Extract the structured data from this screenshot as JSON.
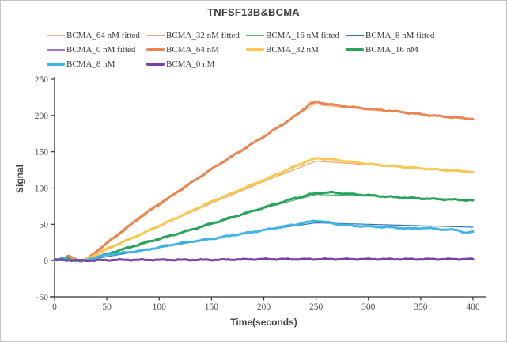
{
  "title": "TNFSF13B&BCMA",
  "chart_data": {
    "type": "line",
    "title": "TNFSF13B&BCMA",
    "xlabel": "Time(seconds)",
    "ylabel": "Signal",
    "xlim": [
      0,
      400
    ],
    "ylim": [
      -50,
      250
    ],
    "x_ticks": [
      0,
      50,
      100,
      150,
      200,
      250,
      300,
      350,
      400
    ],
    "y_ticks": [
      -50,
      0,
      50,
      100,
      150,
      200,
      250
    ],
    "grid": false,
    "legend_position": "top",
    "axis_color": "#333333",
    "series": [
      {
        "name": "BCMA_64 nM fitted",
        "color": "#F4B183",
        "width": 1.2,
        "style": "fitted",
        "noise": 0,
        "points": [
          [
            0,
            0
          ],
          [
            28,
            0
          ],
          [
            85,
            65
          ],
          [
            150,
            127
          ],
          [
            200,
            172
          ],
          [
            248,
            215
          ],
          [
            300,
            208
          ],
          [
            350,
            202
          ],
          [
            400,
            196
          ]
        ]
      },
      {
        "name": "BCMA_32 nM fitted",
        "color": "#F0A36E",
        "width": 1.2,
        "style": "fitted",
        "noise": 0,
        "points": [
          [
            0,
            0
          ],
          [
            28,
            0
          ],
          [
            85,
            38
          ],
          [
            150,
            79
          ],
          [
            200,
            109
          ],
          [
            250,
            137
          ],
          [
            300,
            132
          ],
          [
            350,
            127
          ],
          [
            400,
            123
          ]
        ]
      },
      {
        "name": "BCMA_16 nM fitted",
        "color": "#55B567",
        "width": 1.2,
        "style": "fitted",
        "noise": 0,
        "points": [
          [
            0,
            0
          ],
          [
            28,
            0
          ],
          [
            85,
            23
          ],
          [
            150,
            50
          ],
          [
            200,
            72
          ],
          [
            250,
            91
          ],
          [
            300,
            89
          ],
          [
            350,
            86
          ],
          [
            400,
            84
          ]
        ]
      },
      {
        "name": "BCMA_8 nM fitted",
        "color": "#2E75B6",
        "width": 1.2,
        "style": "fitted",
        "noise": 0,
        "points": [
          [
            0,
            0
          ],
          [
            28,
            0
          ],
          [
            85,
            14
          ],
          [
            150,
            30
          ],
          [
            200,
            42
          ],
          [
            250,
            52
          ],
          [
            300,
            50
          ],
          [
            350,
            48
          ],
          [
            400,
            46
          ]
        ]
      },
      {
        "name": "BCMA_0 nM fitted",
        "color": "#A07CC8",
        "width": 1.2,
        "style": "fitted",
        "noise": 0,
        "points": [
          [
            0,
            0
          ],
          [
            100,
            1
          ],
          [
            250,
            1
          ],
          [
            400,
            1
          ]
        ]
      },
      {
        "name": "BCMA_64 nM",
        "color": "#EC8450",
        "width": 3,
        "style": "raw",
        "noise": 1.2,
        "points": [
          [
            0,
            2
          ],
          [
            8,
            3
          ],
          [
            14,
            6
          ],
          [
            20,
            2
          ],
          [
            26,
            -1
          ],
          [
            32,
            3
          ],
          [
            50,
            24
          ],
          [
            85,
            63
          ],
          [
            120,
            97
          ],
          [
            150,
            126
          ],
          [
            200,
            171
          ],
          [
            230,
            199
          ],
          [
            245,
            217
          ],
          [
            252,
            218
          ],
          [
            270,
            214
          ],
          [
            300,
            209
          ],
          [
            330,
            205
          ],
          [
            360,
            200
          ],
          [
            400,
            195
          ]
        ]
      },
      {
        "name": "BCMA_32 nM",
        "color": "#FAC64B",
        "width": 3,
        "style": "raw",
        "noise": 1.1,
        "points": [
          [
            0,
            1
          ],
          [
            10,
            3
          ],
          [
            20,
            1
          ],
          [
            28,
            0
          ],
          [
            50,
            16
          ],
          [
            85,
            38
          ],
          [
            120,
            61
          ],
          [
            150,
            81
          ],
          [
            200,
            111
          ],
          [
            240,
            136
          ],
          [
            250,
            141
          ],
          [
            262,
            140
          ],
          [
            300,
            133
          ],
          [
            350,
            127
          ],
          [
            400,
            122
          ]
        ]
      },
      {
        "name": "BCMA_16 nM",
        "color": "#27A45B",
        "width": 3,
        "style": "raw",
        "noise": 1.2,
        "points": [
          [
            0,
            1
          ],
          [
            12,
            3
          ],
          [
            22,
            0
          ],
          [
            30,
            0
          ],
          [
            50,
            9
          ],
          [
            85,
            24
          ],
          [
            120,
            38
          ],
          [
            150,
            51
          ],
          [
            200,
            73
          ],
          [
            230,
            86
          ],
          [
            250,
            93
          ],
          [
            265,
            94
          ],
          [
            280,
            92
          ],
          [
            300,
            90
          ],
          [
            330,
            87
          ],
          [
            360,
            85
          ],
          [
            400,
            83
          ]
        ]
      },
      {
        "name": "BCMA_8 nM",
        "color": "#3FB3E8",
        "width": 3,
        "style": "raw",
        "noise": 1.1,
        "points": [
          [
            0,
            1
          ],
          [
            10,
            2
          ],
          [
            20,
            0
          ],
          [
            28,
            0
          ],
          [
            50,
            8
          ],
          [
            85,
            14
          ],
          [
            120,
            24
          ],
          [
            150,
            30
          ],
          [
            200,
            42
          ],
          [
            235,
            51
          ],
          [
            250,
            55
          ],
          [
            260,
            53
          ],
          [
            270,
            50
          ],
          [
            285,
            48
          ],
          [
            300,
            47
          ],
          [
            320,
            46
          ],
          [
            340,
            44
          ],
          [
            355,
            45
          ],
          [
            370,
            43
          ],
          [
            385,
            42
          ],
          [
            394,
            38
          ],
          [
            400,
            40
          ]
        ]
      },
      {
        "name": "BCMA_0 nM",
        "color": "#7B3FA8",
        "width": 3,
        "style": "raw",
        "noise": 1.0,
        "points": [
          [
            0,
            1
          ],
          [
            30,
            0
          ],
          [
            60,
            1
          ],
          [
            100,
            1
          ],
          [
            150,
            1
          ],
          [
            200,
            2
          ],
          [
            250,
            2
          ],
          [
            300,
            2
          ],
          [
            350,
            2
          ],
          [
            400,
            2
          ]
        ]
      }
    ]
  }
}
